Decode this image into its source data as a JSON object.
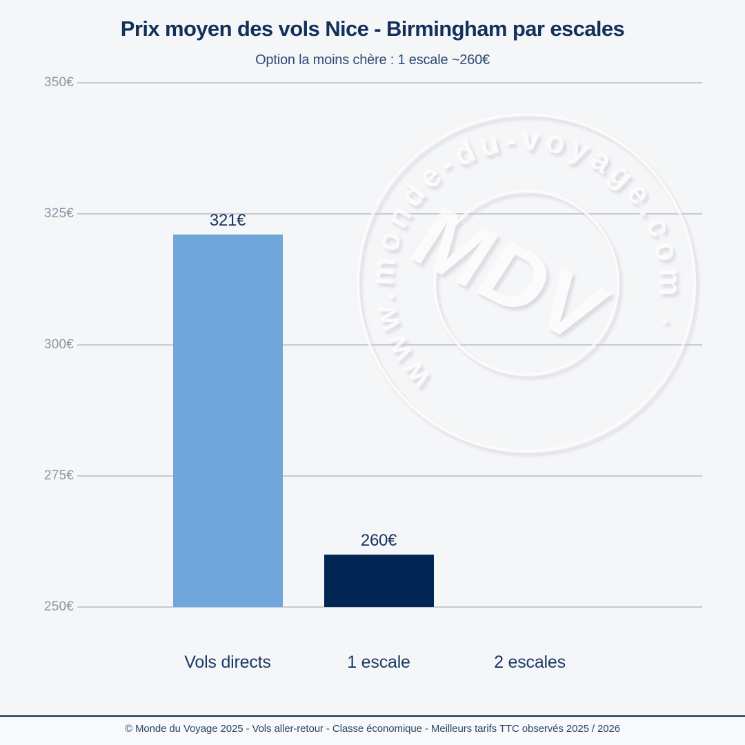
{
  "header": {
    "title": "Prix moyen des vols Nice - Birmingham par escales",
    "subtitle": "Option la moins chère : 1 escale ~260€"
  },
  "watermark": {
    "circular_text": "www.monde-du-voyage.com ·",
    "center_text": "MDV"
  },
  "footer": {
    "text": "© Monde du Voyage 2025 - Vols aller-retour - Classe économique - Meilleurs tarifs TTC observés 2025 / 2026"
  },
  "colors": {
    "background": "#f5f6f7",
    "title": "#13305d",
    "subtitle": "#2c4b76",
    "gridline": "#c7cad2",
    "axis_tick": "#8e95a4",
    "bar_vols_directs": "#70a6d9",
    "bar_1_escale": "#042655",
    "value_label": "#15335f",
    "category_label": "#1b3a68",
    "footer_line": "#12294a",
    "footer_text": "#2c4566",
    "watermark_fill": "#fdfdfe",
    "watermark_shadow": "#c9ccd4"
  },
  "chart_data": {
    "type": "bar",
    "title": "Prix moyen des vols Nice - Birmingham par escales",
    "subtitle": "Option la moins chère : 1 escale ~260€",
    "categories": [
      "Vols directs",
      "1 escale",
      "2 escales"
    ],
    "values": [
      321,
      260,
      null
    ],
    "value_labels": [
      "321€",
      "260€",
      ""
    ],
    "bar_colors": [
      "#70a6d9",
      "#042655",
      null
    ],
    "currency": "€",
    "xlabel": "",
    "ylabel": "",
    "ylim": [
      250,
      350
    ],
    "yticks": [
      350,
      325,
      300,
      275,
      250
    ],
    "ytick_labels": [
      "350€",
      "325€",
      "300€",
      "275€",
      "250€"
    ],
    "grid": true,
    "legend": false
  }
}
